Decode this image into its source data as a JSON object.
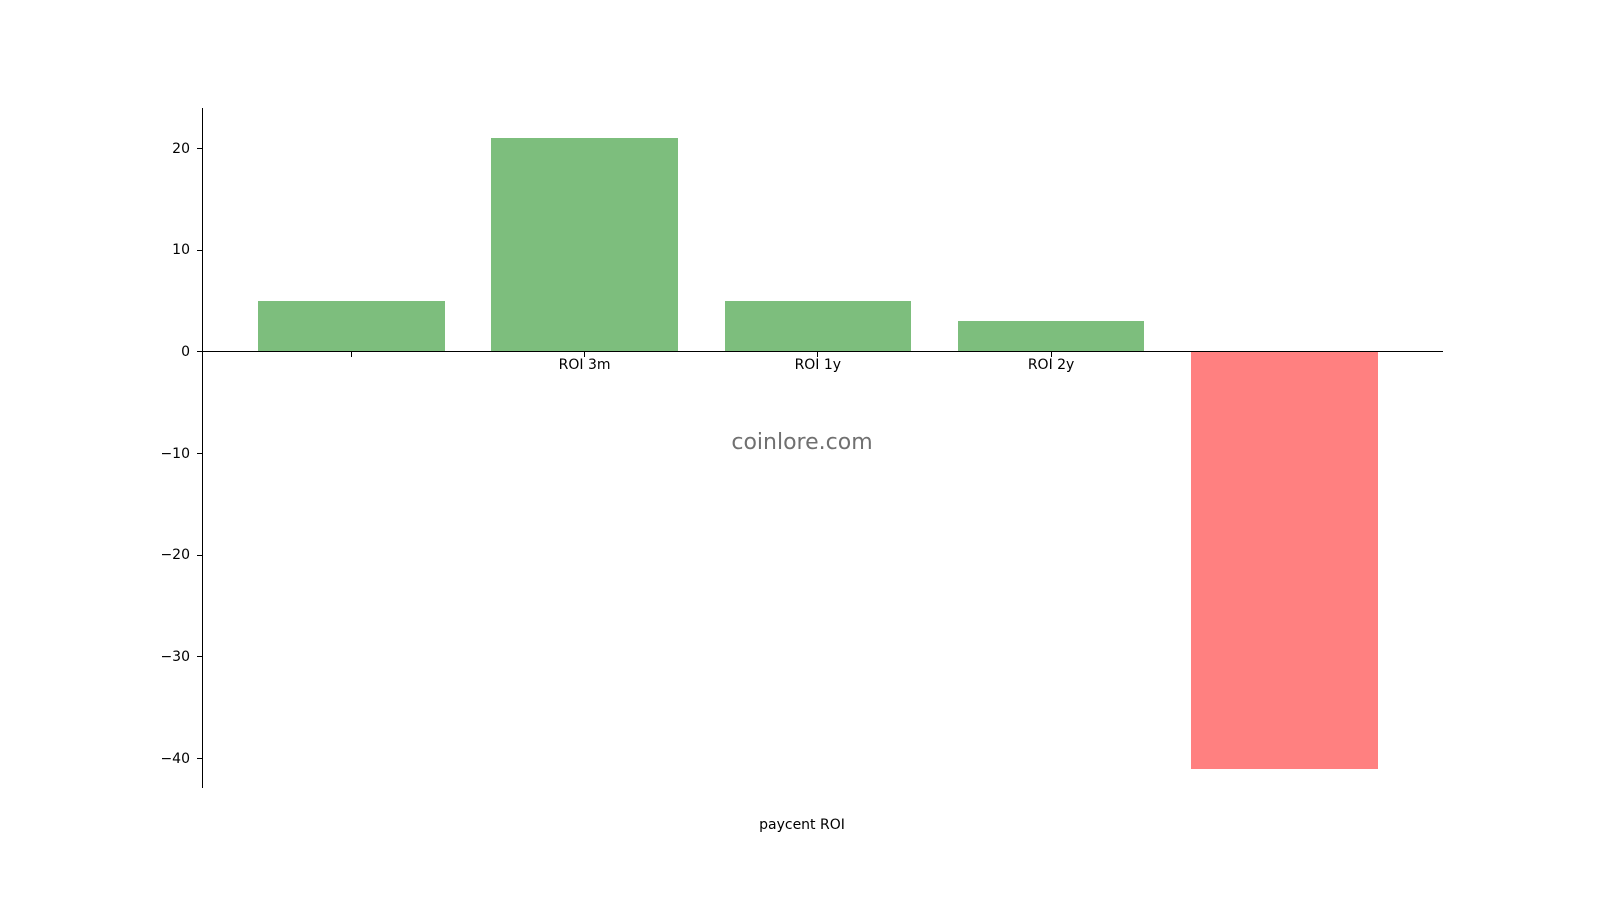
{
  "chart_data": {
    "type": "bar",
    "title": "",
    "xlabel": "paycent ROI",
    "ylabel": "",
    "watermark": "coinlore.com",
    "categories": [
      "",
      "ROI 3m",
      "ROI 1y",
      "ROI 2y",
      ""
    ],
    "values": [
      5,
      21,
      5,
      3,
      -41
    ],
    "positive_color": "#7dbe7d",
    "negative_color": "#ff8080",
    "bar_colors": [
      "#7dbe7d",
      "#7dbe7d",
      "#7dbe7d",
      "#7dbe7d",
      "#ff8080"
    ],
    "yticks": [
      20,
      10,
      0,
      -10,
      -20,
      -30,
      -40
    ],
    "ytick_labels": [
      "20",
      "10",
      "0",
      "−10",
      "−20",
      "−30",
      "−40"
    ],
    "ylim": [
      -42.9,
      24.0
    ],
    "xlim": [
      -0.64,
      4.68
    ],
    "bar_width": 0.8,
    "grid": false,
    "legend": null,
    "axis_color": "#000000",
    "watermark_color": "#707070"
  }
}
